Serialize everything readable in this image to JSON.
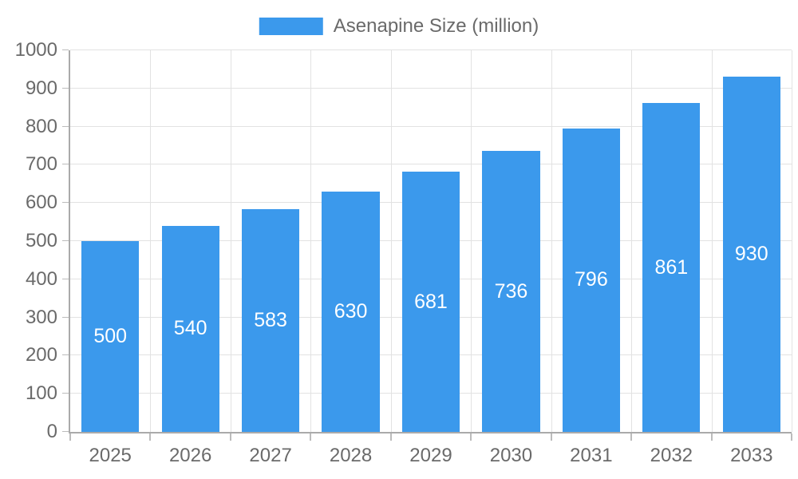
{
  "chart_data": {
    "type": "bar",
    "title": "",
    "legend": "Asenapine Size (million)",
    "legend_position": "top",
    "categories": [
      "2025",
      "2026",
      "2027",
      "2028",
      "2029",
      "2030",
      "2031",
      "2032",
      "2033"
    ],
    "values": [
      500,
      540,
      583,
      630,
      681,
      736,
      796,
      861,
      930
    ],
    "xlabel": "",
    "ylabel": "",
    "ylim": [
      0,
      1000
    ],
    "ytick_step": 100,
    "grid": true,
    "bar_value_labels": true,
    "colors": {
      "bar": "#3B99EC",
      "grid": "#e2e2e2",
      "axis": "#aaaaaa",
      "tick": "#bcbcbc",
      "text": "#6a6a6a",
      "value_label": "#ffffff"
    }
  }
}
